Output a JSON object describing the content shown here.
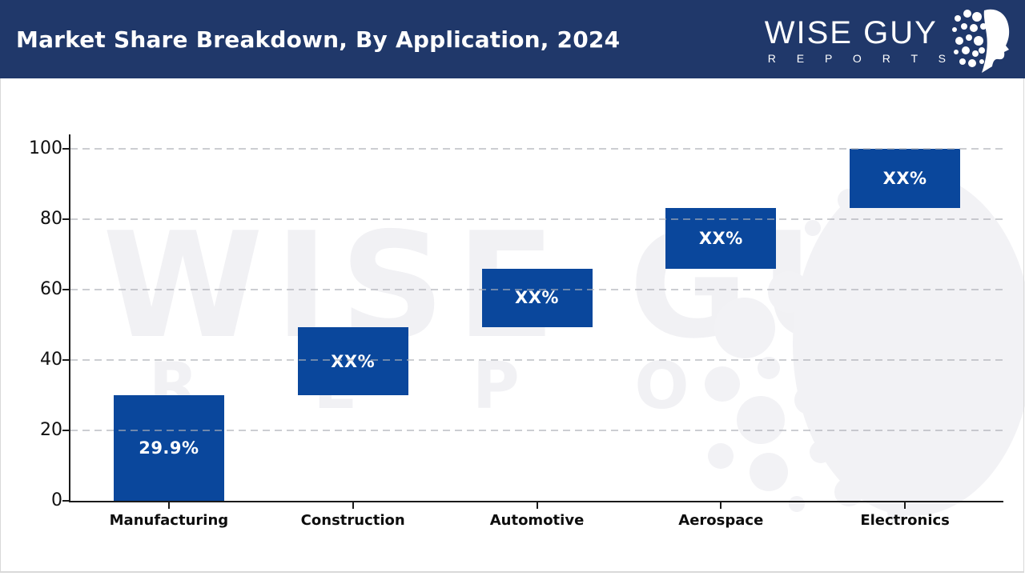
{
  "header": {
    "title": "Market Share Breakdown, By Application, 2024",
    "logo": {
      "line1": "WISE GUY",
      "line2": "R E P O R T S"
    }
  },
  "watermark": {
    "line1": "WISE GUY",
    "line2": "R E P O R T S"
  },
  "colors": {
    "header_bg": "#20386a",
    "bar": "#0a479c",
    "bar_label_text": "#ffffff",
    "title_text": "#ffffff",
    "axis": "#1a1a1a",
    "gridline": "#d8d8d8",
    "watermark": "#f1f1f4",
    "background": "#ffffff"
  },
  "chart_data": {
    "type": "bar",
    "subtype": "waterfall",
    "title": "Market Share Breakdown, By Application, 2024",
    "categories": [
      "Manufacturing",
      "Construction",
      "Automotive",
      "Aerospace",
      "Electronics"
    ],
    "segments": [
      {
        "name": "Manufacturing",
        "start": 0,
        "end": 29.9,
        "label": "29.9%"
      },
      {
        "name": "Construction",
        "start": 29.9,
        "end": 49.3,
        "label": "XX%"
      },
      {
        "name": "Automotive",
        "start": 49.3,
        "end": 66.0,
        "label": "XX%"
      },
      {
        "name": "Aerospace",
        "start": 66.0,
        "end": 83.2,
        "label": "XX%"
      },
      {
        "name": "Electronics",
        "start": 83.2,
        "end": 100.0,
        "label": "XX%"
      }
    ],
    "xlabel": "",
    "ylabel": "",
    "ylim": [
      0,
      100
    ],
    "yticks": [
      0,
      20,
      40,
      60,
      80,
      100
    ],
    "grid": "horizontal-dashed-over-bars",
    "legend": "none"
  }
}
